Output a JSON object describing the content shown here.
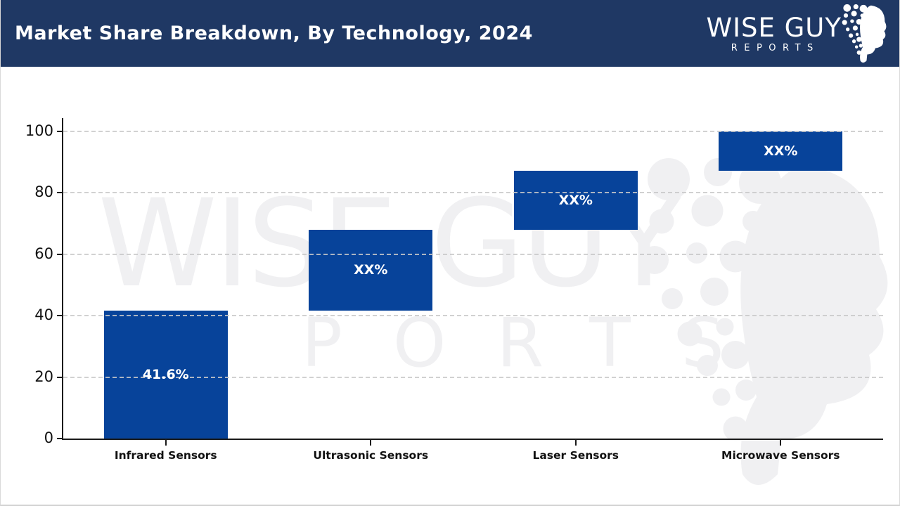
{
  "header": {
    "title": "Market Share Breakdown, By Technology, 2024",
    "logo": {
      "line1": "WISE GUY",
      "line2": "REPORTS"
    }
  },
  "watermark": {
    "line1": "WISE GUY",
    "line2": "PORTS"
  },
  "colors": {
    "header_bg": "#1f3864",
    "bar": "#07439a",
    "bar_label": "#ffffff",
    "grid": "#c9c9c9",
    "axis": "#1a1a1a",
    "watermark": "#f0f0f2"
  },
  "chart_data": {
    "type": "bar",
    "subtype": "waterfall",
    "title": "Market Share Breakdown, By Technology, 2024",
    "categories": [
      "Infrared Sensors",
      "Ultrasonic Sensors",
      "Laser Sensors",
      "Microwave Sensors"
    ],
    "segments": [
      {
        "category": "Infrared Sensors",
        "start": 0,
        "end": 41.6,
        "label": "41.6%"
      },
      {
        "category": "Ultrasonic Sensors",
        "start": 41.6,
        "end": 68,
        "label": "XX%"
      },
      {
        "category": "Laser Sensors",
        "start": 68,
        "end": 87,
        "label": "XX%"
      },
      {
        "category": "Microwave Sensors",
        "start": 87,
        "end": 100,
        "label": "XX%"
      }
    ],
    "xlabel": "",
    "ylabel": "",
    "ylim": [
      0,
      104
    ],
    "yticks": [
      0,
      20,
      40,
      60,
      80,
      100
    ],
    "grid": "horizontal-dashed",
    "legend": "none"
  }
}
